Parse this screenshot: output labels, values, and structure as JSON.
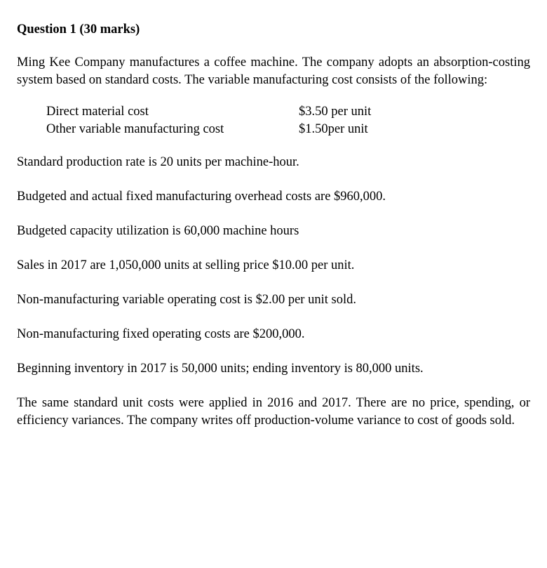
{
  "title": "Question 1 (30 marks)",
  "intro": "Ming Kee Company manufactures a coffee machine.  The company adopts an absorption-costing system based on standard costs.  The variable manufacturing cost consists of the following:",
  "costs": {
    "direct_material": {
      "label": "Direct material cost",
      "value": "$3.50 per unit"
    },
    "other_variable": {
      "label": "Other variable manufacturing cost",
      "value": "$1.50per unit"
    }
  },
  "statements": {
    "s1": "Standard production rate is 20 units per machine-hour.",
    "s2": "Budgeted and actual fixed manufacturing overhead costs are $960,000.",
    "s3": "Budgeted capacity utilization is 60,000 machine hours",
    "s4": "Sales in 2017 are 1,050,000 units at selling price $10.00 per unit.",
    "s5": "Non-manufacturing variable operating cost is $2.00 per unit sold.",
    "s6": "Non-manufacturing fixed operating costs are $200,000.",
    "s7": "Beginning inventory in 2017 is 50,000 units; ending inventory is 80,000 units.",
    "s8": "The same standard unit costs were applied in 2016 and 2017.  There are no price, spending, or efficiency variances.  The company writes off production-volume variance to cost of goods sold."
  }
}
